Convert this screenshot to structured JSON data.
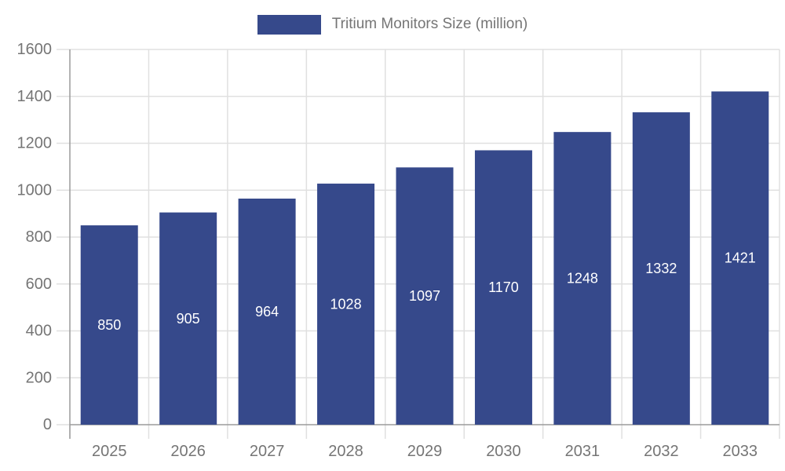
{
  "chart_data": {
    "type": "bar",
    "title": "Tritium Monitors Size (million)",
    "legend": [
      "Tritium Monitors Size (million)"
    ],
    "legend_position": "top-center",
    "categories": [
      "2025",
      "2026",
      "2027",
      "2028",
      "2029",
      "2030",
      "2031",
      "2032",
      "2033"
    ],
    "series": [
      {
        "name": "Tritium Monitors Size (million)",
        "values": [
          850,
          905,
          964,
          1028,
          1097,
          1170,
          1248,
          1332,
          1421
        ]
      }
    ],
    "xlabel": "",
    "ylabel": "",
    "ylim": [
      0,
      1600
    ],
    "yticks": [
      0,
      200,
      400,
      600,
      800,
      1000,
      1200,
      1400,
      1600
    ],
    "grid": true,
    "bar_value_labels": "inside-middle",
    "colors": {
      "bar": "#36498B",
      "bar_value_label": "#FFFFFF",
      "axis_text": "#757575",
      "grid_line": "#E0E0E0",
      "axis_line": "#9B9B9B"
    }
  }
}
